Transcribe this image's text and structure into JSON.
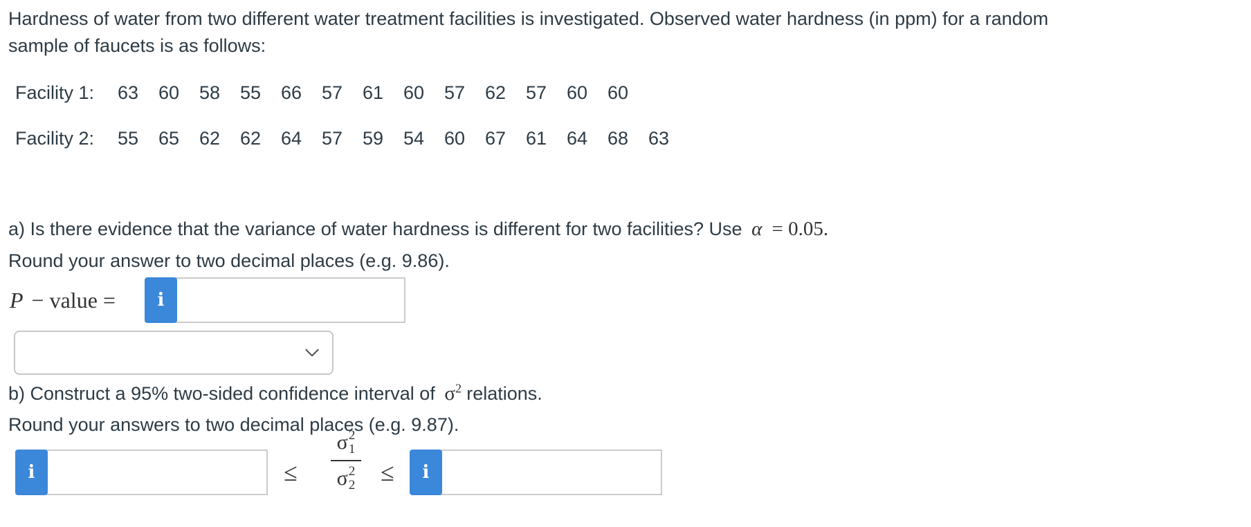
{
  "colors": {
    "text": "#2d3b45",
    "math_text": "#333333",
    "accent_blue": "#3b87d9",
    "input_border": "#cbcbcb",
    "dropdown_border": "#c7c7c7"
  },
  "intro": {
    "line1": "Hardness of water from two different water treatment facilities is investigated. Observed water hardness (in ppm) for a random",
    "line2": "sample of faucets is as follows:"
  },
  "data_rows": [
    {
      "label": "Facility 1:",
      "values": [
        "63",
        "60",
        "58",
        "55",
        "66",
        "57",
        "61",
        "60",
        "57",
        "62",
        "57",
        "60",
        "60"
      ]
    },
    {
      "label": "Facility 2:",
      "values": [
        "55",
        "65",
        "62",
        "62",
        "64",
        "57",
        "59",
        "54",
        "60",
        "67",
        "61",
        "64",
        "68",
        "63"
      ]
    }
  ],
  "part_a": {
    "question": "a) Is there evidence that the variance of water hardness is different for two facilities? Use",
    "alpha": "α",
    "alpha_value": "= 0.05.",
    "round_note": "Round your answer to two decimal places (e.g. 9.86).",
    "p_symbol": "P",
    "p_label_rest": "− value =",
    "info_label": "i",
    "p_value_input": {
      "value": "",
      "placeholder": ""
    },
    "conclusion_dropdown": {
      "selected": ""
    }
  },
  "part_b": {
    "question_prefix": "b) Construct a 95% two-sided confidence interval of",
    "sigma": "σ",
    "sigma_exponent": "2",
    "question_suffix": "relations.",
    "round_note": "Round your answers to two decimal places (e.g. 9.87).",
    "leq_left": "≤",
    "leq_right": "≤",
    "fraction": {
      "numerator_sigma": "σ",
      "numerator_sup": "2",
      "numerator_sub": "1",
      "denominator_sigma": "σ",
      "denominator_sup": "2",
      "denominator_sub": "2"
    },
    "info_label": "i",
    "lower_bound_input": {
      "value": "",
      "placeholder": ""
    },
    "upper_bound_input": {
      "value": "",
      "placeholder": ""
    }
  }
}
